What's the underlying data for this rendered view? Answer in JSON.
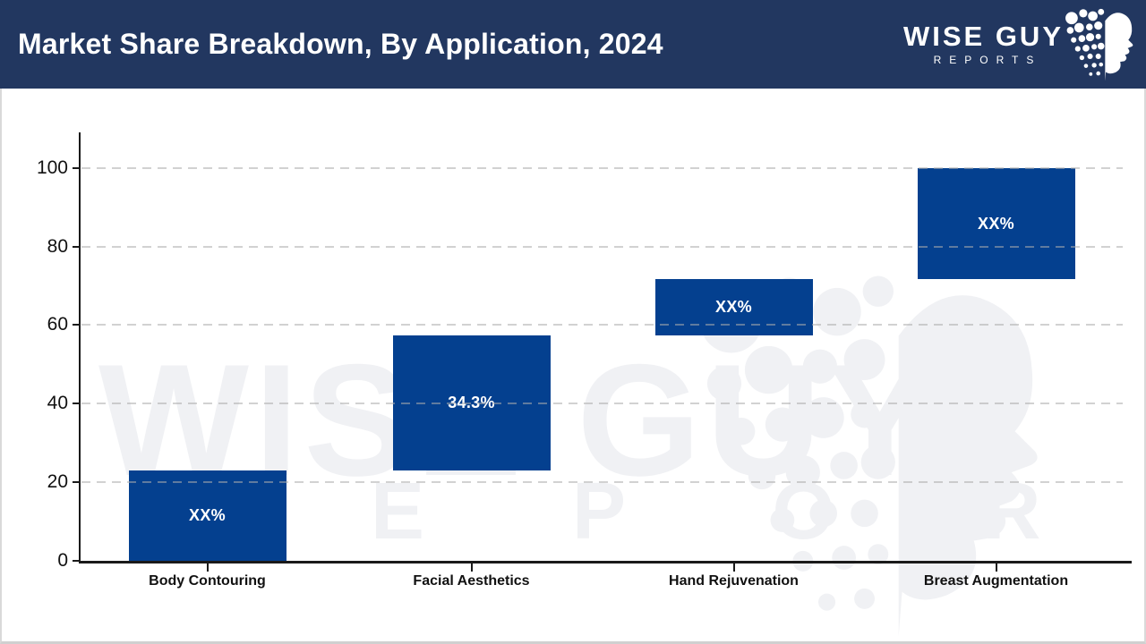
{
  "header": {
    "title": "Market Share Breakdown, By Application, 2024",
    "logo": {
      "line1": "WISE GUY",
      "line2": "REPORTS",
      "face_icon": "dotted-face-profile"
    }
  },
  "watermark": {
    "line1": "WISE GUY",
    "line2": "R E P O R T S",
    "face_icon": "dotted-face-profile"
  },
  "colors": {
    "header_bg": "#223760",
    "bar": "#04408F",
    "bar_label": "#ffffff",
    "grid": "rgba(172,172,172,0.55)",
    "axis": "#1a1a1a",
    "watermark": "#f0f1f4"
  },
  "chart_data": {
    "type": "bar",
    "subtype": "floating-waterfall",
    "title": "Market Share Breakdown, By Application, 2024",
    "categories": [
      "Body Contouring",
      "Facial Aesthetics",
      "Hand Rejuvenation",
      "Breast Augmentation"
    ],
    "series": [
      {
        "name": "Market Share %",
        "segment_start": [
          0,
          23,
          57.3,
          71.6
        ],
        "segment_end": [
          23,
          57.3,
          71.6,
          100
        ],
        "values": [
          23,
          34.3,
          14.3,
          28.4
        ]
      }
    ],
    "bar_labels": [
      "XX%",
      "34.3%",
      "XX%",
      "XX%"
    ],
    "xlabel": "",
    "ylabel": "",
    "yticks": [
      0,
      20,
      40,
      60,
      80,
      100
    ],
    "ylim": [
      0,
      100
    ],
    "grid": "horizontal-dashed",
    "legend": "none"
  }
}
